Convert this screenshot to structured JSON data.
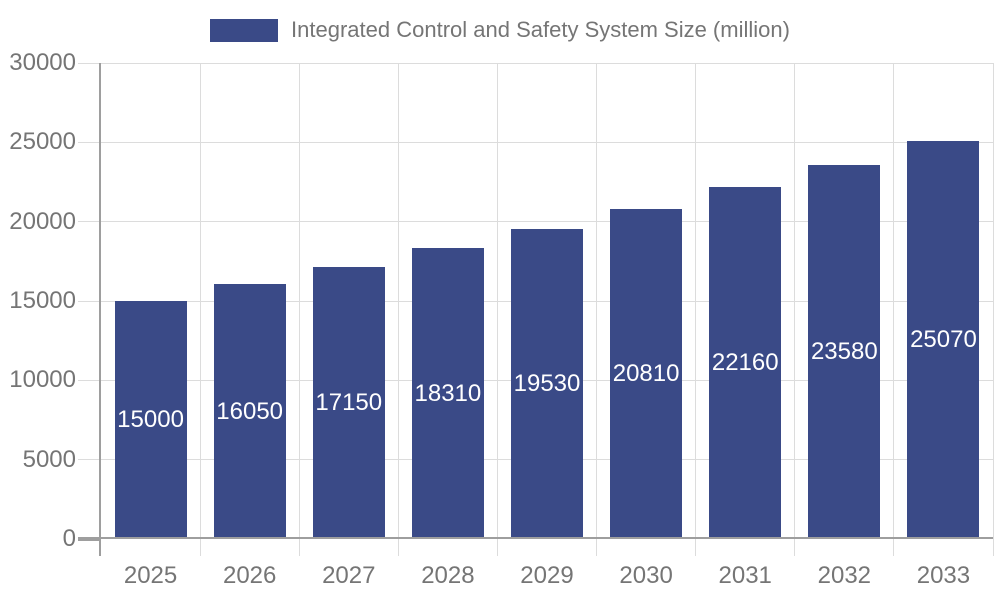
{
  "chart_data": {
    "type": "bar",
    "title": "Integrated Control and Safety System Size (million)",
    "categories": [
      "2025",
      "2026",
      "2027",
      "2028",
      "2029",
      "2030",
      "2031",
      "2032",
      "2033"
    ],
    "values": [
      15000,
      16050,
      17150,
      18310,
      19530,
      20810,
      22160,
      23580,
      25070
    ],
    "xlabel": "",
    "ylabel": "",
    "ylim": [
      0,
      30000
    ],
    "yticks": [
      0,
      5000,
      10000,
      15000,
      20000,
      25000,
      30000
    ],
    "grid": true,
    "legend_position": "top-center",
    "bar_color": "#3A4A87",
    "bar_label_color": "#ffffff",
    "axis_text_color": "#757575",
    "grid_color": "#dcdcdc",
    "axis_line_color": "#9e9e9e",
    "background_color": "#ffffff"
  }
}
